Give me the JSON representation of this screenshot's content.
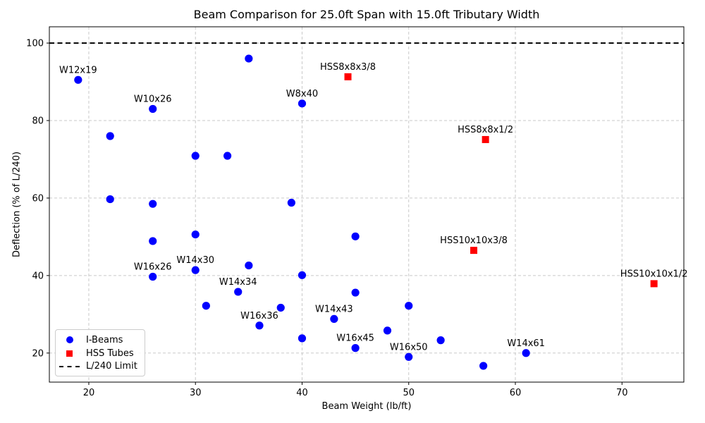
{
  "chart_data": {
    "type": "scatter",
    "title": "Beam Comparison for 25.0ft Span with 15.0ft Tributary Width",
    "xlabel": "Beam Weight (lb/ft)",
    "ylabel": "Deflection (% of L/240)",
    "xlim": [
      16.3,
      75.8
    ],
    "ylim": [
      12.5,
      104.2
    ],
    "xticks": [
      20,
      30,
      40,
      50,
      60,
      70
    ],
    "yticks": [
      20,
      40,
      60,
      80,
      100
    ],
    "grid": true,
    "grid_color": "#c9c9c9",
    "axis_color": "#000000",
    "background_color": "#ffffff",
    "series": [
      {
        "name": "I-Beams",
        "marker": "circle",
        "color": "#0000ff",
        "points": [
          {
            "x": 19,
            "y": 90.5,
            "label": "W12x19"
          },
          {
            "x": 22,
            "y": 76.0
          },
          {
            "x": 22,
            "y": 59.7
          },
          {
            "x": 26,
            "y": 83.0,
            "label": "W10x26"
          },
          {
            "x": 26,
            "y": 58.5
          },
          {
            "x": 26,
            "y": 48.9
          },
          {
            "x": 26,
            "y": 39.7,
            "label": "W16x26"
          },
          {
            "x": 30,
            "y": 70.9
          },
          {
            "x": 30,
            "y": 50.6
          },
          {
            "x": 30,
            "y": 41.4,
            "label": "W14x30"
          },
          {
            "x": 31,
            "y": 32.2
          },
          {
            "x": 33,
            "y": 70.9
          },
          {
            "x": 34,
            "y": 35.8,
            "label": "W14x34"
          },
          {
            "x": 35,
            "y": 96.0
          },
          {
            "x": 35,
            "y": 42.6
          },
          {
            "x": 36,
            "y": 27.1,
            "label": "W16x36"
          },
          {
            "x": 38,
            "y": 31.7
          },
          {
            "x": 39,
            "y": 58.8
          },
          {
            "x": 40,
            "y": 84.4,
            "label": "W8x40"
          },
          {
            "x": 40,
            "y": 40.1
          },
          {
            "x": 40,
            "y": 23.8
          },
          {
            "x": 43,
            "y": 28.8,
            "label": "W14x43"
          },
          {
            "x": 45,
            "y": 50.1
          },
          {
            "x": 45,
            "y": 35.6
          },
          {
            "x": 45,
            "y": 21.3,
            "label": "W16x45"
          },
          {
            "x": 48,
            "y": 25.8
          },
          {
            "x": 50,
            "y": 32.2
          },
          {
            "x": 50,
            "y": 19.0,
            "label": "W16x50"
          },
          {
            "x": 53,
            "y": 23.3
          },
          {
            "x": 57,
            "y": 16.7
          },
          {
            "x": 61,
            "y": 20.0,
            "label": "W14x61"
          }
        ]
      },
      {
        "name": "HSS Tubes",
        "marker": "square",
        "color": "#ff0000",
        "points": [
          {
            "x": 44.3,
            "y": 91.3,
            "label": "HSS8x8x3/8"
          },
          {
            "x": 57.2,
            "y": 75.1,
            "label": "HSS8x8x1/2"
          },
          {
            "x": 56.1,
            "y": 46.5,
            "label": "HSS10x10x3/8"
          },
          {
            "x": 73.0,
            "y": 37.9,
            "label": "HSS10x10x1/2"
          }
        ]
      }
    ],
    "limit_line": {
      "y": 100,
      "label": "L/240 Limit",
      "color": "#000000",
      "style": "dashed"
    },
    "legend": {
      "position": "lower-left",
      "entries": [
        {
          "label": "I-Beams",
          "marker": "circle",
          "color": "#0000ff"
        },
        {
          "label": "HSS Tubes",
          "marker": "square",
          "color": "#ff0000"
        },
        {
          "label": "L/240 Limit",
          "marker": "dashed-line",
          "color": "#000000"
        }
      ]
    }
  }
}
